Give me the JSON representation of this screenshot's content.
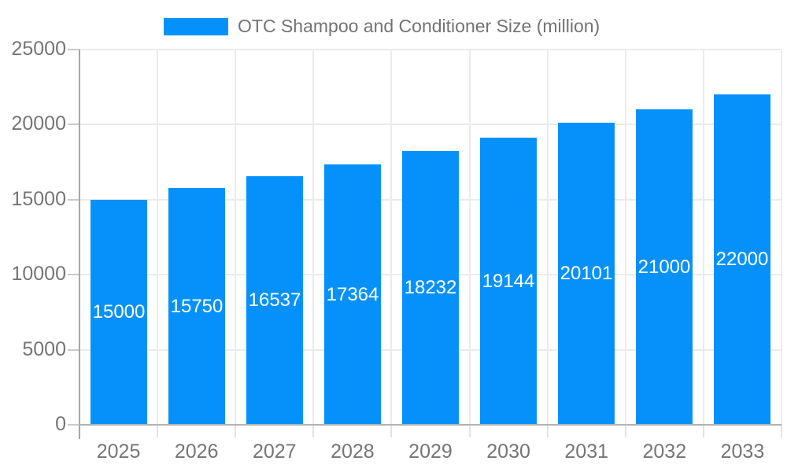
{
  "legend": {
    "label": "OTC Shampoo and Conditioner Size (million)",
    "swatch_color": "#0691fa"
  },
  "chart_data": {
    "type": "bar",
    "title": "OTC Shampoo and Conditioner Size (million)",
    "categories": [
      "2025",
      "2026",
      "2027",
      "2028",
      "2029",
      "2030",
      "2031",
      "2032",
      "2033"
    ],
    "values": [
      15000,
      15750,
      16537,
      17364,
      18232,
      19144,
      20101,
      21000,
      22000
    ],
    "series": [
      {
        "name": "OTC Shampoo and Conditioner Size (million)",
        "values": [
          15000,
          15750,
          16537,
          17364,
          18232,
          19144,
          20101,
          21000,
          22000
        ]
      }
    ],
    "xlabel": "",
    "ylabel": "",
    "ylim": [
      0,
      25000
    ],
    "yticks": [
      0,
      5000,
      10000,
      15000,
      20000,
      25000
    ],
    "ytick_labels": [
      "0",
      "5000",
      "10000",
      "15000",
      "20000",
      "25000"
    ],
    "grid": true,
    "legend_position": "top",
    "bar_color": "#0691fa",
    "bar_label_color": "#ffffff",
    "bar_labels_visible": true
  },
  "colors": {
    "bar": "#0691fa",
    "axis_text": "#757575",
    "legend_text": "#737373",
    "gridline": "#ebebeb",
    "axis_line": "#a6a6a6",
    "baseline": "#b3b3b3",
    "background": "#ffffff"
  }
}
